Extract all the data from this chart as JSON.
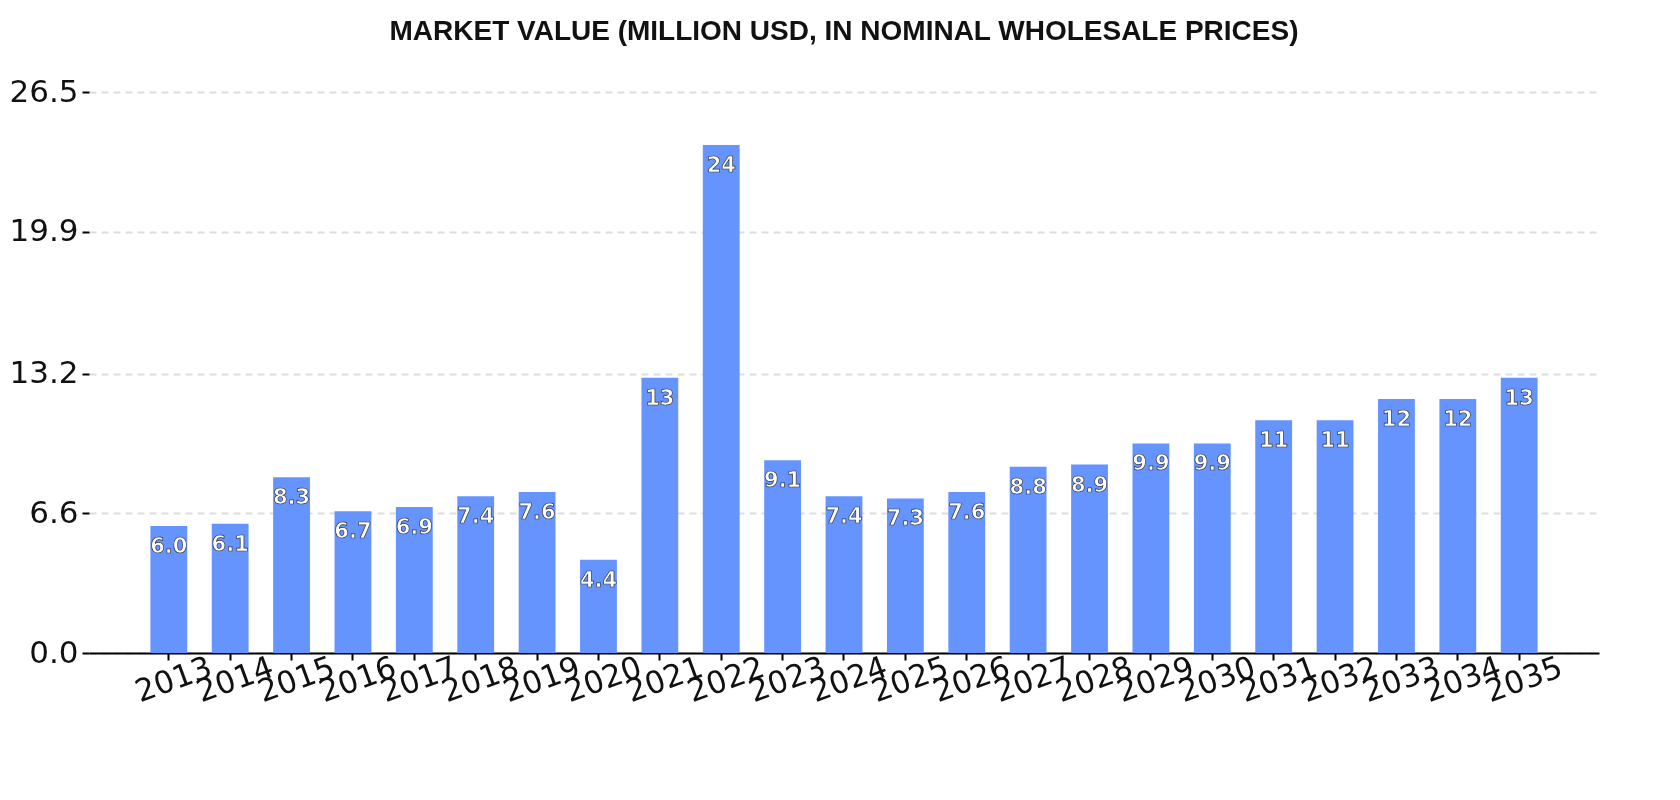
{
  "chart_data": {
    "type": "bar",
    "title": "MARKET VALUE (MILLION USD, IN NOMINAL WHOLESALE PRICES)",
    "categories": [
      "2013",
      "2014",
      "2015",
      "2016",
      "2017",
      "2018",
      "2019",
      "2020",
      "2021",
      "2022",
      "2023",
      "2024",
      "2025",
      "2026",
      "2027",
      "2028",
      "2029",
      "2030",
      "2031",
      "2032",
      "2033",
      "2034",
      "2035"
    ],
    "values": [
      6.0,
      6.1,
      8.3,
      6.7,
      6.9,
      7.4,
      7.6,
      4.4,
      13,
      24,
      9.1,
      7.4,
      7.3,
      7.6,
      8.8,
      8.9,
      9.9,
      9.9,
      11,
      11,
      12,
      12,
      13
    ],
    "value_labels": [
      "6.0",
      "6.1",
      "8.3",
      "6.7",
      "6.9",
      "7.4",
      "7.6",
      "4.4",
      "13",
      "24",
      "9.1",
      "7.4",
      "7.3",
      "7.6",
      "8.8",
      "8.9",
      "9.9",
      "9.9",
      "11",
      "11",
      "12",
      "12",
      "13"
    ],
    "color": "#6694ff",
    "ylim": [
      0,
      26.5
    ],
    "yticks": [
      {
        "value": 0,
        "label": "0.0"
      },
      6.6,
      13.2,
      19.9,
      26.5
    ],
    "grid": "y"
  }
}
